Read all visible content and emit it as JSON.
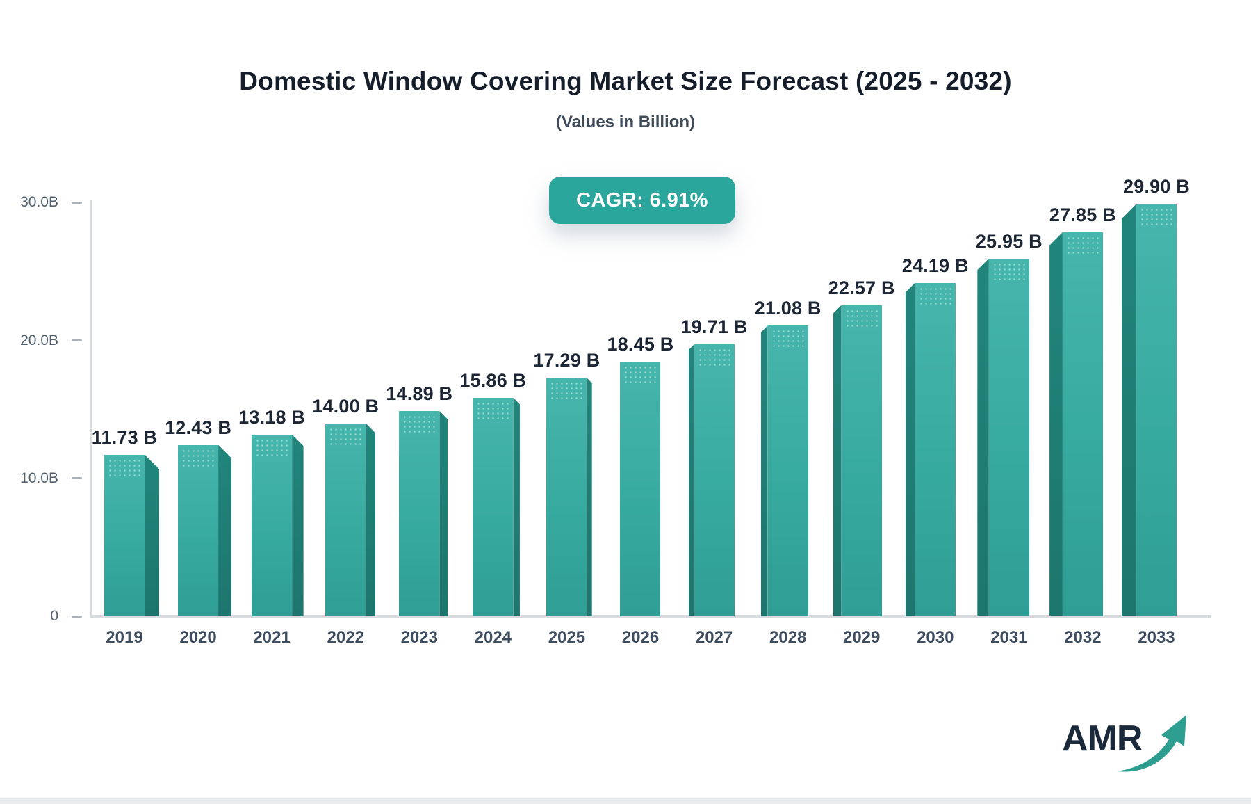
{
  "title": "Domestic Window Covering Market Size Forecast (2025 - 2032)",
  "subtitle": "(Values in Billion)",
  "badge": {
    "label": "CAGR: 6.91%"
  },
  "logo": {
    "text": "AMR"
  },
  "colors": {
    "accent_teal": "#2aa69c",
    "bar_face": "#3bb0a6",
    "bar_side": "#1e7c72",
    "axis_gray": "#d8dcdf",
    "title_text": "#141d29",
    "label_text": "#1c2634",
    "logo_navy": "#1b2a3a",
    "logo_arrow": "#2e9e90"
  },
  "chart_data": {
    "type": "bar",
    "title": "Domestic Window Covering Market Size Forecast (2025 - 2032)",
    "subtitle": "(Values in Billion)",
    "annotation": "CAGR: 6.91%",
    "categories": [
      "2019",
      "2020",
      "2021",
      "2022",
      "2023",
      "2024",
      "2025",
      "2026",
      "2027",
      "2028",
      "2029",
      "2030",
      "2031",
      "2032",
      "2033"
    ],
    "values": [
      11.73,
      12.43,
      13.18,
      14.0,
      14.89,
      15.86,
      17.29,
      18.45,
      19.71,
      21.08,
      22.57,
      24.19,
      25.95,
      27.85,
      29.9
    ],
    "value_labels": [
      "11.73 B",
      "12.43 B",
      "13.18 B",
      "14.00 B",
      "14.89 B",
      "15.86 B",
      "17.29 B",
      "18.45 B",
      "19.71 B",
      "21.08 B",
      "22.57 B",
      "24.19 B",
      "25.95 B",
      "27.85 B",
      "29.90 B"
    ],
    "xlabel": "",
    "ylabel": "",
    "ylim": [
      0,
      30
    ],
    "grid": false,
    "legend": "none",
    "y_ticks": [
      {
        "value": 0,
        "label": "0"
      },
      {
        "value": 10,
        "label": "10.0B"
      },
      {
        "value": 20,
        "label": "20.0B"
      },
      {
        "value": 30,
        "label": "30.0B"
      }
    ]
  }
}
